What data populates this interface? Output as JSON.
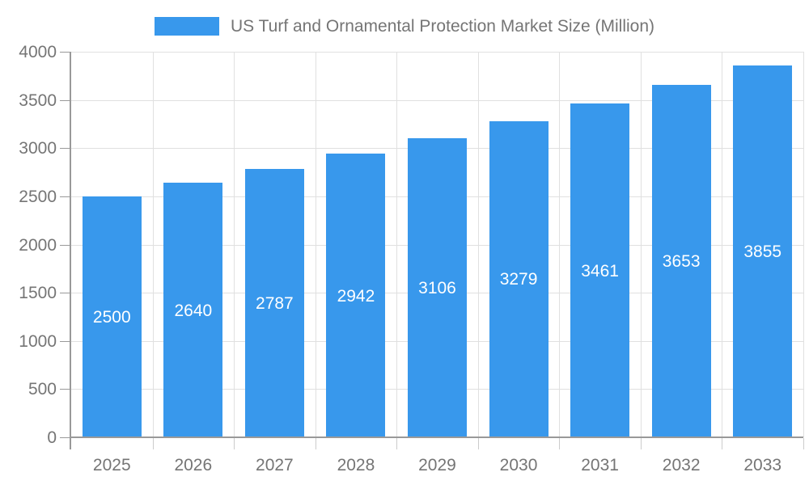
{
  "legend": {
    "label": "US Turf and Ornamental Protection Market Size (Million)",
    "swatch_color": "#3898ec"
  },
  "chart_data": {
    "type": "bar",
    "title": "US Turf and Ornamental Protection Market Size (Million)",
    "categories": [
      "2025",
      "2026",
      "2027",
      "2028",
      "2029",
      "2030",
      "2031",
      "2032",
      "2033"
    ],
    "values": [
      2500,
      2640,
      2787,
      2942,
      3106,
      3279,
      3461,
      3653,
      3855
    ],
    "xlabel": "",
    "ylabel": "",
    "ylim": [
      0,
      4000
    ],
    "yticks": [
      0,
      500,
      1000,
      1500,
      2000,
      2500,
      3000,
      3500,
      4000
    ],
    "grid": true,
    "legend_position": "top",
    "bar_color": "#3898ec",
    "bar_label_color": "#ffffff"
  },
  "colors": {
    "axis": "#999999",
    "grid": "#e0e0e0",
    "text": "#757575",
    "background": "#ffffff"
  }
}
